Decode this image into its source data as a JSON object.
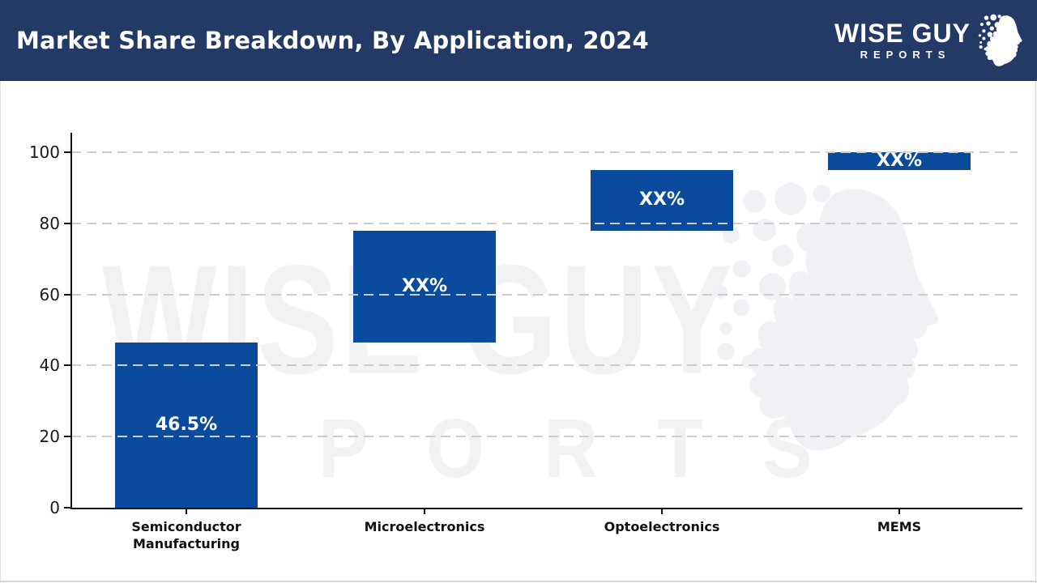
{
  "header": {
    "title": "Market Share Breakdown, By Application, 2024",
    "bg_color": "#233a66",
    "logo": {
      "name": "WISE GUY",
      "tagline": "REPORTS"
    }
  },
  "watermark": {
    "line1": "WISE GUY",
    "line2": "P O R T S"
  },
  "chart_data": {
    "type": "bar",
    "subtype": "waterfall",
    "title": "Market Share Breakdown, By Application, 2024",
    "categories": [
      "Semiconductor Manufacturing",
      "Microelectronics",
      "Optoelectronics",
      "MEMS"
    ],
    "segments": [
      {
        "category": "Semiconductor Manufacturing",
        "start": 0,
        "end": 46.5,
        "value_label": "46.5%"
      },
      {
        "category": "Microelectronics",
        "start": 46.5,
        "end": 78,
        "value_label": "XX%"
      },
      {
        "category": "Optoelectronics",
        "start": 78,
        "end": 95,
        "value_label": "XX%"
      },
      {
        "category": "MEMS",
        "start": 95,
        "end": 100,
        "value_label": "XX%"
      }
    ],
    "yticks": [
      0,
      20,
      40,
      60,
      80,
      100
    ],
    "ylim": [
      0,
      105
    ],
    "xlabel": "",
    "ylabel": "",
    "legend": "none",
    "bar_color": "#0b4b9d",
    "grid": {
      "horizontal": true,
      "style": "dashed",
      "color": "#cccccc"
    }
  }
}
